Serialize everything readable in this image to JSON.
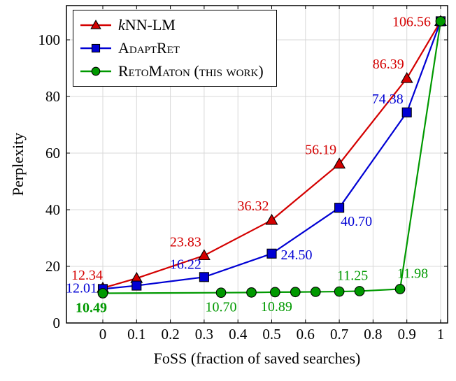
{
  "chart_data": {
    "type": "line",
    "title": "",
    "xlabel": "FoSS (fraction of saved searches)",
    "ylabel": "Perplexity",
    "x_tick_labels": [
      "0",
      "0.1",
      "0.2",
      "0.3",
      "0.4",
      "0.5",
      "0.6",
      "0.7",
      "0.8",
      "0.9",
      "1"
    ],
    "x_tick_values": [
      0,
      0.1,
      0.2,
      0.3,
      0.4,
      0.5,
      0.6,
      0.7,
      0.8,
      0.9,
      1
    ],
    "y_tick_labels": [
      "0",
      "20",
      "40",
      "60",
      "80",
      "100"
    ],
    "y_tick_values": [
      0,
      20,
      40,
      60,
      80,
      100
    ],
    "xlim": [
      -0.108,
      1.021
    ],
    "ylim": [
      0,
      112
    ],
    "grid": true,
    "grid_color": "#d8d8d8",
    "frame_color": "#000000",
    "legend_position": "top-left",
    "series": [
      {
        "name": "kNN-LM",
        "legend_label": "kNN-LM",
        "italic_first_letter": true,
        "smallcaps": false,
        "color": "#d40000",
        "marker": "triangle",
        "x": [
          0,
          0.1,
          0.3,
          0.5,
          0.7,
          0.9,
          1
        ],
        "y": [
          12.34,
          15.79,
          23.83,
          36.32,
          56.19,
          86.39,
          106.56
        ],
        "point_labels": [
          {
            "text": "12.34",
            "x": 0,
            "y": 12.34,
            "dx": 0,
            "dy": -12,
            "anchor": "end",
            "bold": false
          },
          {
            "text": "23.83",
            "x": 0.3,
            "y": 23.83,
            "dx": -4,
            "dy": -13,
            "anchor": "end",
            "bold": false
          },
          {
            "text": "36.32",
            "x": 0.5,
            "y": 36.32,
            "dx": -4,
            "dy": -14,
            "anchor": "end",
            "bold": false
          },
          {
            "text": "56.19",
            "x": 0.7,
            "y": 56.19,
            "dx": -4,
            "dy": -14,
            "anchor": "end",
            "bold": false
          },
          {
            "text": "86.39",
            "x": 0.9,
            "y": 86.39,
            "dx": -4,
            "dy": -14,
            "anchor": "end",
            "bold": false
          },
          {
            "text": "106.56",
            "x": 1,
            "y": 106.56,
            "dx": -14,
            "dy": 7,
            "anchor": "end",
            "bold": false
          }
        ]
      },
      {
        "name": "AdaptRet",
        "legend_label": "AdaptRet",
        "italic_first_letter": false,
        "smallcaps": true,
        "color": "#0000d4",
        "marker": "square",
        "x": [
          0,
          0.1,
          0.3,
          0.5,
          0.7,
          0.9,
          1
        ],
        "y": [
          12.01,
          13.2,
          16.22,
          24.5,
          40.7,
          74.38,
          106.56
        ],
        "point_labels": [
          {
            "text": "12.01",
            "x": 0,
            "y": 12.01,
            "dx": -8,
            "dy": 5,
            "anchor": "end",
            "bold": false
          },
          {
            "text": "16.22",
            "x": 0.3,
            "y": 16.22,
            "dx": -4,
            "dy": -12,
            "anchor": "end",
            "bold": false
          },
          {
            "text": "24.50",
            "x": 0.5,
            "y": 24.5,
            "dx": 13,
            "dy": 8,
            "anchor": "start",
            "bold": false
          },
          {
            "text": "40.70",
            "x": 0.7,
            "y": 40.7,
            "dx": 2,
            "dy": 26,
            "anchor": "start",
            "bold": false
          },
          {
            "text": "74.38",
            "x": 0.9,
            "y": 74.38,
            "dx": -5,
            "dy": -13,
            "anchor": "end",
            "bold": false
          }
        ]
      },
      {
        "name": "RetoMaton",
        "legend_label": "RetoMaton (this work)",
        "italic_first_letter": false,
        "smallcaps": true,
        "color": "#009900",
        "marker": "circle",
        "x": [
          0,
          0.35,
          0.44,
          0.51,
          0.57,
          0.63,
          0.7,
          0.76,
          0.88,
          1
        ],
        "y": [
          10.49,
          10.7,
          10.78,
          10.89,
          10.93,
          11.0,
          11.1,
          11.25,
          11.98,
          106.56
        ],
        "point_labels": [
          {
            "text": "10.49",
            "x": 0,
            "y": 10.49,
            "dx": 6,
            "dy": 27,
            "anchor": "end",
            "bold": true
          },
          {
            "text": "10.70",
            "x": 0.35,
            "y": 10.7,
            "dx": 0,
            "dy": 27,
            "anchor": "middle",
            "bold": false
          },
          {
            "text": "10.89",
            "x": 0.51,
            "y": 10.89,
            "dx": 2,
            "dy": 27,
            "anchor": "middle",
            "bold": false
          },
          {
            "text": "11.25",
            "x": 0.76,
            "y": 11.25,
            "dx": -10,
            "dy": -16,
            "anchor": "middle",
            "bold": false
          },
          {
            "text": "11.98",
            "x": 0.88,
            "y": 11.98,
            "dx": 18,
            "dy": -16,
            "anchor": "middle",
            "bold": false
          }
        ]
      }
    ]
  }
}
